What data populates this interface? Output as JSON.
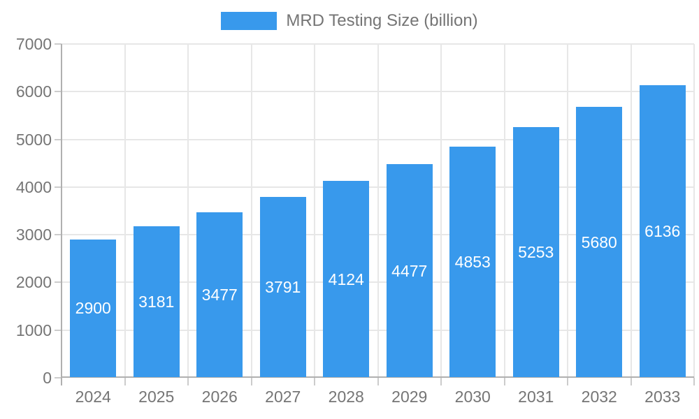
{
  "chart_data": {
    "type": "bar",
    "title": "",
    "legend": "MRD Testing Size (billion)",
    "legend_position": "top-center",
    "categories": [
      "2024",
      "2025",
      "2026",
      "2027",
      "2028",
      "2029",
      "2030",
      "2031",
      "2032",
      "2033"
    ],
    "values": [
      2900,
      3181,
      3477,
      3791,
      4124,
      4477,
      4853,
      5253,
      5680,
      6136
    ],
    "xlabel": "",
    "ylabel": "",
    "ylim": [
      0,
      7000
    ],
    "ytick_step": 1000,
    "ytick_labels": [
      "0",
      "1000",
      "2000",
      "3000",
      "4000",
      "5000",
      "6000",
      "7000"
    ],
    "grid": true,
    "value_label_position": "inside-center",
    "colors": {
      "bar": "#3899EC",
      "grid": "#e7e7e7",
      "axis": "#b0b0b0",
      "tick": "#cccccc",
      "label_text": "#757575",
      "value_text": "#ffffff",
      "background": "#ffffff"
    }
  }
}
